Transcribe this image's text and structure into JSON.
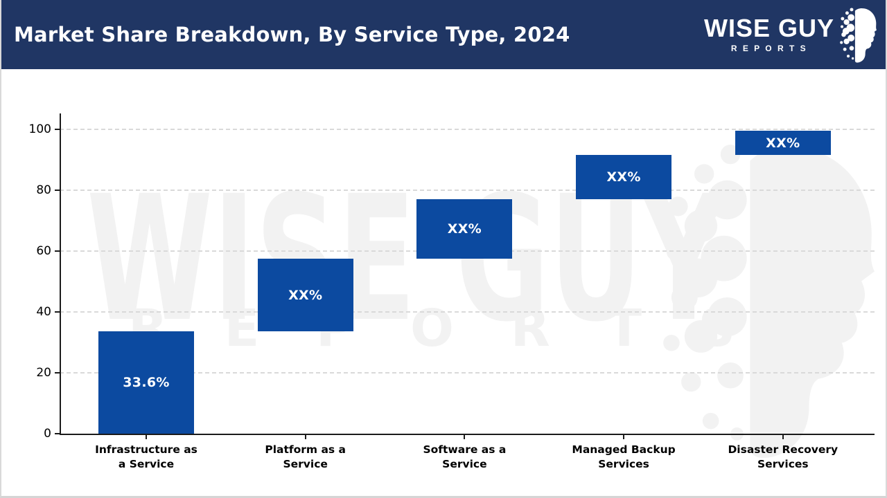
{
  "header": {
    "title": "Market Share Breakdown, By Service Type, 2024",
    "logo": {
      "name": "WISE GUY",
      "tagline": "R E P O R T S"
    }
  },
  "watermark": {
    "name": "WISE GUY",
    "tagline": "R E P O R T S"
  },
  "chart_data": {
    "type": "bar",
    "subtype": "waterfall",
    "title": "Market Share Breakdown, By Service Type, 2024",
    "unit": "%",
    "categories": [
      "Infrastructure as a Service",
      "Platform as a Service",
      "Software as a Service",
      "Managed Backup Services",
      "Disaster Recovery Services"
    ],
    "category_lines": [
      [
        "Infrastructure as",
        "a Service"
      ],
      [
        "Platform as a",
        "Service"
      ],
      [
        "Software as a",
        "Service"
      ],
      [
        "Managed Backup",
        "Services"
      ],
      [
        "Disaster Recovery",
        "Services"
      ]
    ],
    "segments": [
      {
        "category": "Infrastructure as a Service",
        "start": 0,
        "end": 33.6,
        "label": "33.6%"
      },
      {
        "category": "Platform as a Service",
        "start": 33.6,
        "end": 57.5,
        "label": "XX%"
      },
      {
        "category": "Software as a Service",
        "start": 57.5,
        "end": 77.0,
        "label": "XX%"
      },
      {
        "category": "Managed Backup Services",
        "start": 77.0,
        "end": 91.5,
        "label": "XX%"
      },
      {
        "category": "Disaster Recovery Services",
        "start": 91.5,
        "end": 99.5,
        "label": "XX%"
      }
    ],
    "yticks": [
      0,
      20,
      40,
      60,
      80,
      100
    ],
    "ylim": [
      0,
      105
    ],
    "xlabel": "",
    "ylabel": "",
    "grid": "horizontal-dashed",
    "legend": "none",
    "colors": {
      "bar": "#0c4aa0",
      "bar_label": "#ffffff",
      "header_bg": "#203664",
      "header_text": "#ffffff",
      "grid_line": "#d9d9d9",
      "axis": "#1a1a1a",
      "watermark": "#f2f2f2"
    }
  }
}
